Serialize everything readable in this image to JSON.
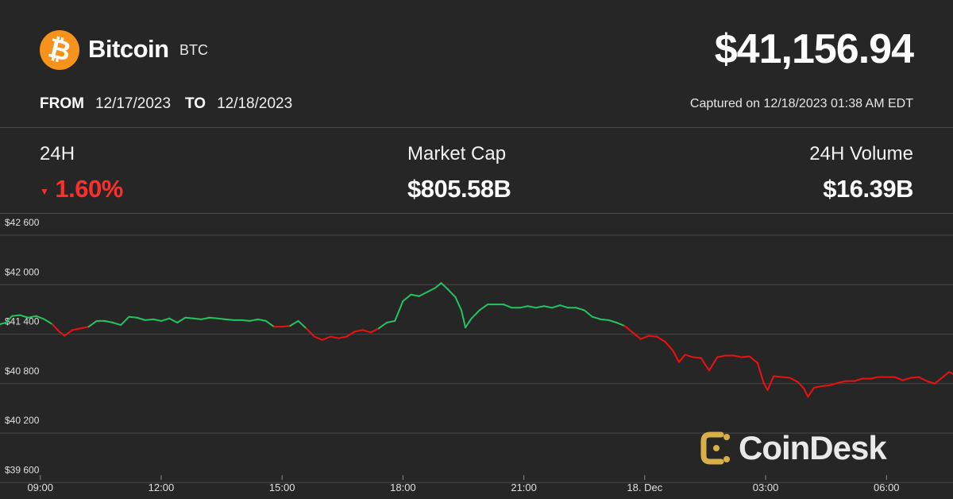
{
  "header": {
    "logo_icon": "bitcoin-icon",
    "logo_glyph": "₿",
    "coin_name": "Bitcoin",
    "symbol": "BTC",
    "price": "$41,156.94"
  },
  "range": {
    "from_label": "FROM",
    "from_date": "12/17/2023",
    "to_label": "TO",
    "to_date": "12/18/2023",
    "captured": "Captured on 12/18/2023 01:38 AM EDT"
  },
  "stats": {
    "change_label": "24H",
    "change_value": "1.60%",
    "change_direction": "down",
    "market_cap_label": "Market Cap",
    "market_cap_value": "$805.58B",
    "volume_label": "24H Volume",
    "volume_value": "$16.39B"
  },
  "colors": {
    "background": "#262626",
    "up": "#22c55e",
    "down": "#ee1111",
    "bitcoin": "#f7931a"
  },
  "watermark": {
    "icon": "coindesk-logo-icon",
    "text": "CoinDesk"
  },
  "chart_data": {
    "type": "line",
    "title": "",
    "xlabel": "",
    "ylabel": "",
    "baseline": 41500,
    "ylim": [
      39400,
      42870
    ],
    "y_ticks": [
      42600,
      42000,
      41400,
      40800,
      40200,
      39600
    ],
    "y_tick_labels": [
      "$42 600",
      "$42 000",
      "$41 400",
      "$40 800",
      "$40 200",
      "$39 600"
    ],
    "x_ticks": [
      1,
      4,
      7,
      10,
      13,
      16,
      19,
      22
    ],
    "x_tick_labels": [
      "09:00",
      "12:00",
      "15:00",
      "18:00",
      "21:00",
      "18. Dec",
      "03:00",
      "06:00"
    ],
    "x_range": [
      0,
      23.65
    ],
    "series": [
      {
        "values": [
          [
            0.0,
            41520
          ],
          [
            0.15,
            41540
          ],
          [
            0.3,
            41620
          ],
          [
            0.5,
            41630
          ],
          [
            0.7,
            41600
          ],
          [
            0.9,
            41620
          ],
          [
            1.1,
            41580
          ],
          [
            1.3,
            41520
          ],
          [
            1.45,
            41440
          ],
          [
            1.6,
            41380
          ],
          [
            1.8,
            41450
          ],
          [
            2.0,
            41470
          ],
          [
            2.2,
            41490
          ],
          [
            2.4,
            41560
          ],
          [
            2.6,
            41560
          ],
          [
            2.8,
            41540
          ],
          [
            3.0,
            41510
          ],
          [
            3.2,
            41610
          ],
          [
            3.4,
            41600
          ],
          [
            3.6,
            41570
          ],
          [
            3.8,
            41580
          ],
          [
            4.0,
            41560
          ],
          [
            4.2,
            41590
          ],
          [
            4.4,
            41540
          ],
          [
            4.6,
            41600
          ],
          [
            4.8,
            41590
          ],
          [
            5.0,
            41580
          ],
          [
            5.2,
            41600
          ],
          [
            5.4,
            41590
          ],
          [
            5.6,
            41580
          ],
          [
            5.8,
            41570
          ],
          [
            6.0,
            41570
          ],
          [
            6.2,
            41560
          ],
          [
            6.4,
            41580
          ],
          [
            6.6,
            41560
          ],
          [
            6.8,
            41490
          ],
          [
            7.0,
            41490
          ],
          [
            7.2,
            41500
          ],
          [
            7.4,
            41560
          ],
          [
            7.6,
            41470
          ],
          [
            7.8,
            41370
          ],
          [
            8.0,
            41330
          ],
          [
            8.2,
            41370
          ],
          [
            8.4,
            41350
          ],
          [
            8.6,
            41370
          ],
          [
            8.8,
            41430
          ],
          [
            9.0,
            41450
          ],
          [
            9.2,
            41420
          ],
          [
            9.4,
            41470
          ],
          [
            9.6,
            41540
          ],
          [
            9.8,
            41560
          ],
          [
            10.0,
            41800
          ],
          [
            10.2,
            41880
          ],
          [
            10.4,
            41860
          ],
          [
            10.6,
            41910
          ],
          [
            10.8,
            41960
          ],
          [
            10.95,
            42020
          ],
          [
            11.1,
            41950
          ],
          [
            11.3,
            41850
          ],
          [
            11.45,
            41690
          ],
          [
            11.55,
            41480
          ],
          [
            11.7,
            41590
          ],
          [
            11.9,
            41690
          ],
          [
            12.1,
            41760
          ],
          [
            12.3,
            41760
          ],
          [
            12.5,
            41760
          ],
          [
            12.7,
            41720
          ],
          [
            12.9,
            41720
          ],
          [
            13.1,
            41740
          ],
          [
            13.3,
            41720
          ],
          [
            13.5,
            41740
          ],
          [
            13.7,
            41720
          ],
          [
            13.9,
            41750
          ],
          [
            14.1,
            41720
          ],
          [
            14.3,
            41720
          ],
          [
            14.5,
            41690
          ],
          [
            14.7,
            41610
          ],
          [
            14.9,
            41580
          ],
          [
            15.1,
            41570
          ],
          [
            15.3,
            41540
          ],
          [
            15.5,
            41500
          ],
          [
            15.7,
            41420
          ],
          [
            15.9,
            41340
          ],
          [
            16.1,
            41380
          ],
          [
            16.3,
            41370
          ],
          [
            16.5,
            41310
          ],
          [
            16.7,
            41200
          ],
          [
            16.85,
            41060
          ],
          [
            17.0,
            41150
          ],
          [
            17.2,
            41120
          ],
          [
            17.4,
            41110
          ],
          [
            17.5,
            41030
          ],
          [
            17.6,
            40960
          ],
          [
            17.8,
            41120
          ],
          [
            18.0,
            41140
          ],
          [
            18.2,
            41140
          ],
          [
            18.4,
            41120
          ],
          [
            18.6,
            41130
          ],
          [
            18.8,
            41050
          ],
          [
            18.95,
            40810
          ],
          [
            19.05,
            40720
          ],
          [
            19.2,
            40890
          ],
          [
            19.4,
            40880
          ],
          [
            19.6,
            40870
          ],
          [
            19.8,
            40820
          ],
          [
            19.95,
            40740
          ],
          [
            20.05,
            40640
          ],
          [
            20.2,
            40750
          ],
          [
            20.4,
            40770
          ],
          [
            20.6,
            40780
          ],
          [
            20.8,
            40810
          ],
          [
            21.0,
            40830
          ],
          [
            21.2,
            40830
          ],
          [
            21.4,
            40860
          ],
          [
            21.6,
            40860
          ],
          [
            21.8,
            40880
          ],
          [
            22.0,
            40880
          ],
          [
            22.2,
            40880
          ],
          [
            22.4,
            40840
          ],
          [
            22.6,
            40870
          ],
          [
            22.8,
            40880
          ],
          [
            23.0,
            40830
          ],
          [
            23.2,
            40800
          ],
          [
            23.4,
            40880
          ],
          [
            23.55,
            40940
          ],
          [
            23.65,
            40920
          ]
        ]
      }
    ]
  }
}
